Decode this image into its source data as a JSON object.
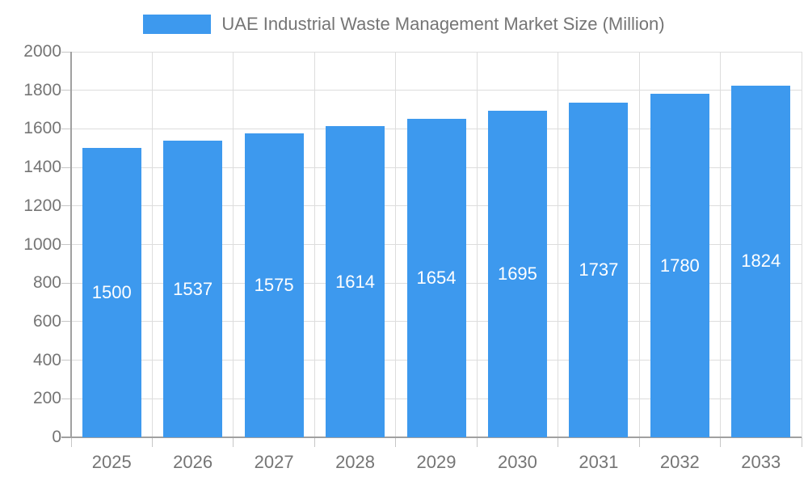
{
  "legend": {
    "label": "UAE Industrial Waste Management Market Size (Million)"
  },
  "chart_data": {
    "type": "bar",
    "title": "UAE Industrial Waste Management Market Size (Million)",
    "categories": [
      "2025",
      "2026",
      "2027",
      "2028",
      "2029",
      "2030",
      "2031",
      "2032",
      "2033"
    ],
    "values": [
      1500,
      1537,
      1575,
      1614,
      1654,
      1695,
      1737,
      1780,
      1824
    ],
    "xlabel": "",
    "ylabel": "",
    "ylim": [
      0,
      2000
    ],
    "ytick_step": 200,
    "yticks": [
      0,
      200,
      400,
      600,
      800,
      1000,
      1200,
      1400,
      1600,
      1800,
      2000
    ],
    "grid": true,
    "legend_position": "top",
    "data_labels": "inside-center"
  },
  "colors": {
    "bar": "#3d99ee",
    "bar_label": "#ffffff",
    "text": "#757575",
    "gridline": "#dddddd",
    "tick": "#c6c6c6",
    "axis": "#a0a0a0",
    "background": "#ffffff"
  }
}
